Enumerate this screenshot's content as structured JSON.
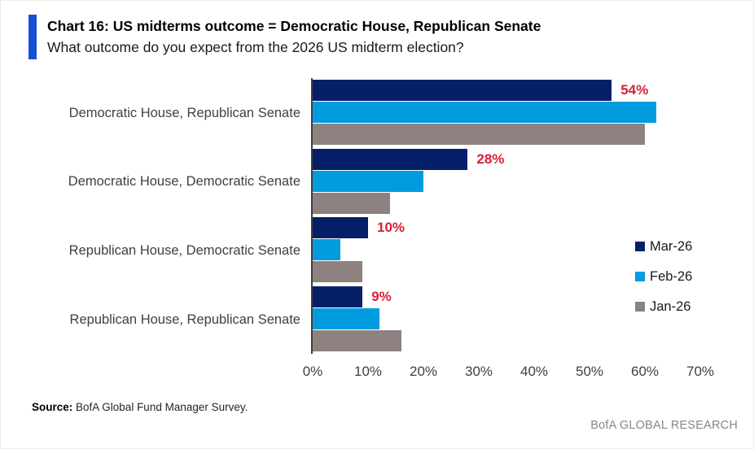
{
  "header": {
    "title": "Chart 16: US midterms outcome = Democratic House, Republican Senate",
    "subtitle": "What outcome do you expect from the 2026 US midterm election?"
  },
  "chart_data": {
    "type": "bar",
    "orientation": "horizontal",
    "title": "Chart 16: US midterms outcome = Democratic House, Republican Senate",
    "subtitle": "What outcome do you expect from the 2026 US midterm election?",
    "categories": [
      "Democratic House, Republican Senate",
      "Democratic House, Democratic Senate",
      "Republican House, Democratic Senate",
      "Republican House, Republican Senate"
    ],
    "series": [
      {
        "name": "Mar-26",
        "color": "#052069",
        "values": [
          54,
          28,
          10,
          9
        ]
      },
      {
        "name": "Feb-26",
        "color": "#009cdf",
        "values": [
          62,
          20,
          5,
          12
        ]
      },
      {
        "name": "Jan-26",
        "color": "#8d8280",
        "values": [
          60,
          14,
          9,
          16
        ]
      }
    ],
    "data_labels": {
      "on_series": "Mar-26",
      "labels": [
        "54%",
        "28%",
        "10%",
        "9%"
      ],
      "color": "#d6203a"
    },
    "x_ticks": [
      "0%",
      "10%",
      "20%",
      "30%",
      "40%",
      "50%",
      "60%",
      "70%"
    ],
    "xlim": [
      0,
      70
    ],
    "grid": false,
    "legend_position": "right-middle",
    "legend": [
      "Mar-26",
      "Feb-26",
      "Jan-26"
    ]
  },
  "footer": {
    "source_label": "Source:",
    "source_text": " BofA Global Fund Manager Survey.",
    "brand": "BofA GLOBAL RESEARCH"
  },
  "colors": {
    "accent_bar": "#1551d4",
    "navy": "#052069",
    "light_blue": "#009cdf",
    "gray": "#8d8280",
    "label_red": "#d6203a",
    "axis": "#404040"
  }
}
